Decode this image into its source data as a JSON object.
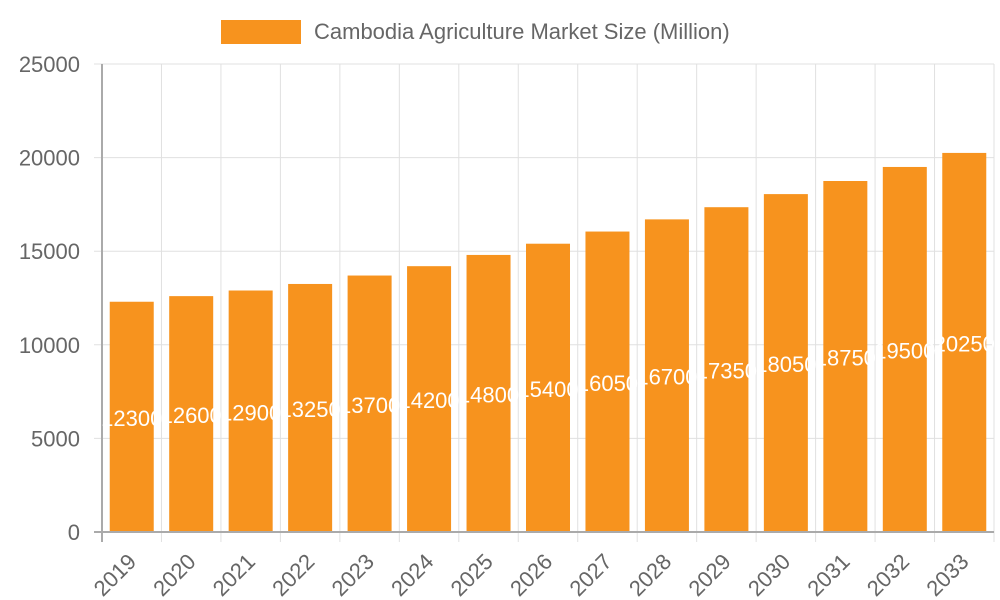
{
  "chart_data": {
    "type": "bar",
    "title": "",
    "legend": [
      {
        "label": "Cambodia Agriculture Market Size (Million)",
        "color": "#f7931e"
      }
    ],
    "legend_position": "top",
    "categories": [
      "2019",
      "2020",
      "2021",
      "2022",
      "2023",
      "2024",
      "2025",
      "2026",
      "2027",
      "2028",
      "2029",
      "2030",
      "2031",
      "2032",
      "2033"
    ],
    "series": [
      {
        "name": "Cambodia Agriculture Market Size (Million)",
        "color": "#f7931e",
        "values": [
          12300,
          12600,
          12900,
          13250,
          13700,
          14200,
          14800,
          15400,
          16050,
          16700,
          17350,
          18050,
          18750,
          19500,
          20250
        ]
      }
    ],
    "xlabel": "",
    "ylabel": "",
    "ylim": [
      0,
      25000
    ],
    "yticks": [
      0,
      5000,
      10000,
      15000,
      20000,
      25000
    ],
    "grid": true,
    "data_labels": true,
    "xtick_rotation": -45
  },
  "legend": {
    "label": "Cambodia Agriculture Market Size (Million)",
    "color": "#f7931e"
  },
  "colors": {
    "bar": "#f7931e",
    "grid": "#e0e0e0",
    "axis": "#aaaaaa",
    "tick_text": "#666666",
    "data_label": "#ffffff"
  }
}
